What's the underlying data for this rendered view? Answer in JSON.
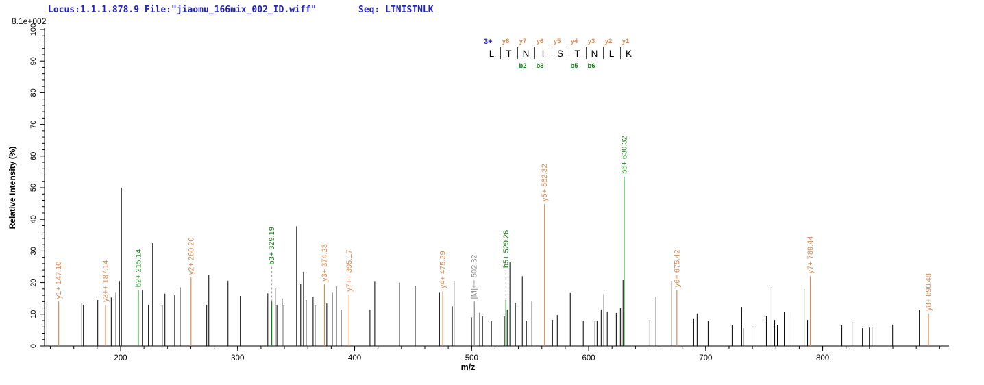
{
  "header": {
    "locus_text": "Locus:1.1.1.878.9 File:\"jiaomu_166mix_002_ID.wiff\"",
    "seq_text": "Seq: LTNISTNLK",
    "base_peak_intensity": "8.1e+002"
  },
  "annotation": {
    "charge": "3+",
    "residues": [
      "L",
      "T",
      "N",
      "I",
      "S",
      "T",
      "N",
      "L",
      "K"
    ],
    "top_ions": [
      {
        "label": "y8",
        "boundary": 1
      },
      {
        "label": "y7",
        "boundary": 2
      },
      {
        "label": "y6",
        "boundary": 3
      },
      {
        "label": "y5",
        "boundary": 4
      },
      {
        "label": "y4",
        "boundary": 5
      },
      {
        "label": "y3",
        "boundary": 6
      },
      {
        "label": "y2",
        "boundary": 7
      },
      {
        "label": "y1",
        "boundary": 8
      }
    ],
    "bottom_ions": [
      {
        "label": "b2",
        "boundary": 2
      },
      {
        "label": "b3",
        "boundary": 3
      },
      {
        "label": "b5",
        "boundary": 5
      },
      {
        "label": "b6",
        "boundary": 6
      }
    ]
  },
  "colors": {
    "y_ion": "#dd8a50",
    "b_ion": "#107d10",
    "precursor": "#8a8a8a",
    "peak": "#000000",
    "header_text": "#2323bb",
    "charge_text": "#2323cc",
    "axis": "#000000"
  },
  "chart_data": {
    "type": "bar",
    "subtype": "ms2-centroid-spectrum",
    "title": "",
    "xlabel": "m/z",
    "ylabel": "Relative  Intensity (%)",
    "xlim": [
      135,
      908
    ],
    "ylim": [
      0,
      100
    ],
    "x_major_ticks": [
      200,
      300,
      400,
      500,
      600,
      700,
      800
    ],
    "x_minor_step": 20,
    "y_major_step": 10,
    "y_minor_step": 2,
    "grid": false,
    "legend": "none",
    "labeled_peaks": [
      {
        "ion": "y1+",
        "mz": 147.1,
        "intensity": 14.0,
        "type": "y",
        "label": "y1+ 147.10"
      },
      {
        "ion": "y3++",
        "mz": 187.14,
        "intensity": 13.0,
        "type": "y",
        "label": "y3++ 187.14"
      },
      {
        "ion": "b2+",
        "mz": 215.14,
        "intensity": 17.7,
        "type": "b",
        "label": "b2+ 215.14"
      },
      {
        "ion": "y2+",
        "mz": 260.2,
        "intensity": 21.6,
        "type": "y",
        "label": "y2+ 260.20"
      },
      {
        "ion": "b3+",
        "mz": 329.19,
        "intensity": 14.0,
        "type": "b",
        "label": "b3+ 329.19",
        "label_offset": 25
      },
      {
        "ion": "y3+",
        "mz": 374.23,
        "intensity": 19.5,
        "type": "y",
        "label": "y3+ 374.23"
      },
      {
        "ion": "y7++",
        "mz": 395.17,
        "intensity": 16.3,
        "type": "y",
        "label": "y7++ 395.17"
      },
      {
        "ion": "y4+",
        "mz": 475.29,
        "intensity": 17.3,
        "type": "y",
        "label": "y4+ 475.29"
      },
      {
        "ion": "[M]++",
        "mz": 502.32,
        "intensity": 14.0,
        "type": "precursor",
        "label": "[M]++ 502.32"
      },
      {
        "ion": "b5+",
        "mz": 529.26,
        "intensity": 14.5,
        "type": "b",
        "label": "b5+ 529.26",
        "label_offset": 24
      },
      {
        "ion": "y5+",
        "mz": 562.32,
        "intensity": 44.8,
        "type": "y",
        "label": "y5+ 562.32"
      },
      {
        "ion": "b6+",
        "mz": 630.32,
        "intensity": 53.5,
        "type": "b",
        "label": "b6+ 630.32"
      },
      {
        "ion": "y6+",
        "mz": 675.42,
        "intensity": 17.7,
        "type": "y",
        "label": "y6+ 675.42"
      },
      {
        "ion": "y7+",
        "mz": 789.44,
        "intensity": 22.0,
        "type": "y",
        "label": "y7+ 789.44"
      },
      {
        "ion": "y8+",
        "mz": 890.48,
        "intensity": 10.2,
        "type": "y",
        "label": "y8+ 890.48"
      }
    ],
    "unlabeled_peaks": [
      [
        137,
        13.8
      ],
      [
        166.8,
        13.5
      ],
      [
        168.2,
        13.0
      ],
      [
        180.5,
        14.5
      ],
      [
        192,
        15.3
      ],
      [
        196,
        17.0
      ],
      [
        199,
        20.5
      ],
      [
        200.7,
        50.0
      ],
      [
        218.6,
        17.5
      ],
      [
        223.8,
        13.0
      ],
      [
        227.4,
        32.5
      ],
      [
        235.6,
        13.0
      ],
      [
        237.9,
        16.5
      ],
      [
        246.2,
        16.0
      ],
      [
        250.9,
        18.5
      ],
      [
        273.6,
        13.0
      ],
      [
        275.4,
        22.3
      ],
      [
        291.8,
        20.6
      ],
      [
        302.3,
        15.8
      ],
      [
        325.8,
        16.6
      ],
      [
        332.2,
        18.4
      ],
      [
        333.6,
        13.0
      ],
      [
        338.1,
        15.0
      ],
      [
        339.5,
        13.0
      ],
      [
        350.4,
        37.8
      ],
      [
        353.9,
        19.5
      ],
      [
        356.3,
        23.4
      ],
      [
        358.6,
        14.5
      ],
      [
        364.5,
        15.6
      ],
      [
        366.2,
        13.0
      ],
      [
        376.2,
        13.4
      ],
      [
        380.9,
        17.0
      ],
      [
        384.4,
        18.8
      ],
      [
        388.5,
        11.5
      ],
      [
        413.1,
        11.5
      ],
      [
        417.2,
        20.5
      ],
      [
        438.3,
        20.0
      ],
      [
        451.8,
        19.0
      ],
      [
        472.5,
        17.0
      ],
      [
        483.5,
        12.5
      ],
      [
        485.0,
        20.6
      ],
      [
        499.9,
        9.0
      ],
      [
        506.9,
        10.5
      ],
      [
        509.3,
        9.3
      ],
      [
        516.9,
        7.8
      ],
      [
        528.0,
        9.3
      ],
      [
        530.4,
        11.5
      ],
      [
        532.7,
        26.4
      ],
      [
        537.4,
        13.6
      ],
      [
        543.3,
        22.0
      ],
      [
        546.8,
        8.0
      ],
      [
        551.5,
        14.0
      ],
      [
        569.1,
        8.2
      ],
      [
        573.2,
        9.7
      ],
      [
        584.3,
        16.9
      ],
      [
        595.4,
        8.0
      ],
      [
        605.4,
        7.8
      ],
      [
        607.2,
        8.0
      ],
      [
        610.7,
        11.5
      ],
      [
        613.0,
        16.4
      ],
      [
        615.9,
        10.8
      ],
      [
        623.6,
        10.4
      ],
      [
        627.1,
        12.0
      ],
      [
        628.3,
        12.0
      ],
      [
        629.4,
        21.0
      ],
      [
        652.3,
        8.2
      ],
      [
        657.5,
        15.6
      ],
      [
        671.0,
        20.5
      ],
      [
        689.8,
        8.7
      ],
      [
        692.7,
        10.2
      ],
      [
        702.1,
        8.0
      ],
      [
        722.6,
        6.5
      ],
      [
        730.8,
        12.3
      ],
      [
        732.2,
        5.6
      ],
      [
        741.4,
        6.7
      ],
      [
        749.0,
        7.8
      ],
      [
        751.9,
        9.3
      ],
      [
        754.9,
        18.6
      ],
      [
        759.0,
        8.2
      ],
      [
        761.3,
        6.7
      ],
      [
        767.2,
        10.6
      ],
      [
        773.0,
        10.6
      ],
      [
        784.2,
        18.0
      ],
      [
        787.1,
        8.2
      ],
      [
        816.4,
        6.5
      ],
      [
        825.2,
        7.6
      ],
      [
        834.0,
        5.6
      ],
      [
        839.9,
        5.8
      ],
      [
        842.2,
        5.8
      ],
      [
        859.8,
        6.7
      ],
      [
        882.6,
        11.3
      ]
    ]
  }
}
